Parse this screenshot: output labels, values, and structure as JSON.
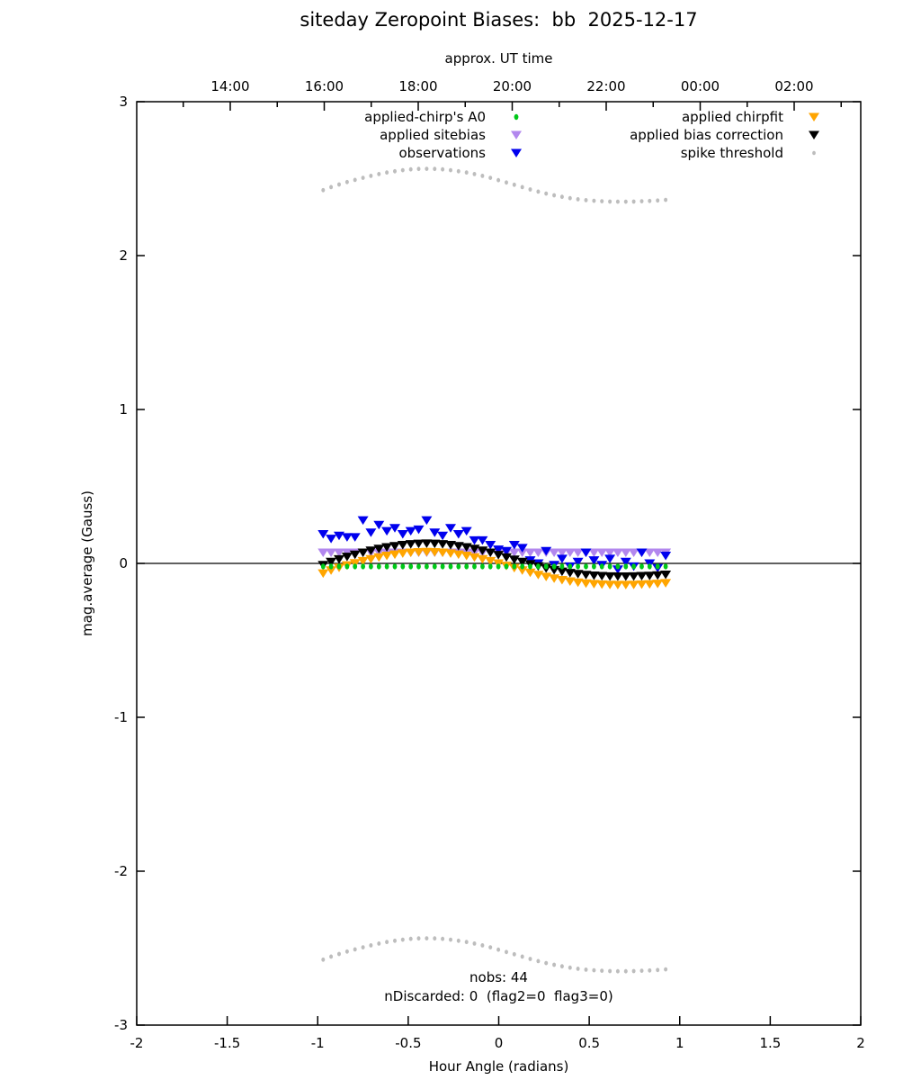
{
  "chart_data": {
    "type": "scatter",
    "title": "siteday Zeropoint Biases:  bb  2025-12-17",
    "x2label": "approx. UT time",
    "xlabel": "Hour Angle (radians)",
    "ylabel": "mag.average (Gauss)",
    "x_range": [
      -2,
      2
    ],
    "y_range": [
      -3,
      3
    ],
    "grid": false,
    "x_ticks": [
      -2,
      -1.5,
      -1,
      -0.5,
      0,
      0.5,
      1,
      1.5,
      2
    ],
    "x_tick_labels": [
      "-2",
      "-1.5",
      "-1",
      "-0.5",
      "0",
      "0.5",
      "1",
      "1.5",
      "2"
    ],
    "y_ticks": [
      -3,
      -2,
      -1,
      0,
      1,
      2,
      3
    ],
    "y_tick_labels": [
      "-3",
      "-2",
      "-1",
      "0",
      "1",
      "2",
      "3"
    ],
    "x2_tick_labels": [
      "14:00",
      "16:00",
      "18:00",
      "20:00",
      "22:00",
      "00:00",
      "02:00"
    ],
    "annotations": {
      "nobs": "nobs: 44",
      "ndiscarded": "nDiscarded: 0  (flag2=0  flag3=0)"
    },
    "x": [
      -0.97,
      -0.926,
      -0.882,
      -0.838,
      -0.794,
      -0.75,
      -0.706,
      -0.662,
      -0.618,
      -0.574,
      -0.53,
      -0.486,
      -0.442,
      -0.398,
      -0.354,
      -0.31,
      -0.266,
      -0.222,
      -0.178,
      -0.134,
      -0.09,
      -0.046,
      -0.002,
      0.042,
      0.086,
      0.13,
      0.174,
      0.218,
      0.262,
      0.306,
      0.35,
      0.394,
      0.438,
      0.482,
      0.526,
      0.57,
      0.614,
      0.658,
      0.702,
      0.746,
      0.79,
      0.834,
      0.878,
      0.922
    ],
    "series": [
      {
        "id": "spike-threshold-upper",
        "name": "spike threshold (upper)",
        "marker": "dot",
        "color": "#bdbdbd",
        "dot_size": [
          2.0,
          2.4
        ],
        "values": [
          2.425,
          2.445,
          2.462,
          2.478,
          2.492,
          2.505,
          2.518,
          2.53,
          2.54,
          2.548,
          2.555,
          2.56,
          2.563,
          2.564,
          2.563,
          2.56,
          2.555,
          2.548,
          2.54,
          2.53,
          2.518,
          2.505,
          2.49,
          2.475,
          2.46,
          2.445,
          2.43,
          2.416,
          2.403,
          2.392,
          2.382,
          2.373,
          2.366,
          2.36,
          2.356,
          2.353,
          2.351,
          2.35,
          2.35,
          2.351,
          2.353,
          2.355,
          2.358,
          2.362
        ]
      },
      {
        "id": "spike-threshold-lower",
        "name": "spike threshold (lower)",
        "marker": "dot",
        "color": "#bdbdbd",
        "dot_size": [
          2.0,
          2.4
        ],
        "values": [
          -2.575,
          -2.555,
          -2.538,
          -2.522,
          -2.508,
          -2.495,
          -2.482,
          -2.47,
          -2.46,
          -2.452,
          -2.445,
          -2.44,
          -2.437,
          -2.436,
          -2.437,
          -2.44,
          -2.445,
          -2.452,
          -2.46,
          -2.47,
          -2.482,
          -2.495,
          -2.51,
          -2.525,
          -2.54,
          -2.555,
          -2.57,
          -2.584,
          -2.597,
          -2.608,
          -2.618,
          -2.627,
          -2.634,
          -2.64,
          -2.644,
          -2.647,
          -2.649,
          -2.65,
          -2.65,
          -2.649,
          -2.647,
          -2.645,
          -2.642,
          -2.638
        ]
      },
      {
        "id": "applied-sitebias",
        "name": "applied sitebias",
        "marker": "triangle-down",
        "color": "#b287ee",
        "value": 0.07
      },
      {
        "id": "observations",
        "name": "observations",
        "marker": "triangle-down",
        "color": "#0000ee",
        "values": [
          0.19,
          0.16,
          0.18,
          0.17,
          0.17,
          0.28,
          0.2,
          0.25,
          0.21,
          0.23,
          0.19,
          0.21,
          0.22,
          0.28,
          0.2,
          0.18,
          0.23,
          0.19,
          0.21,
          0.15,
          0.15,
          0.12,
          0.09,
          0.08,
          0.12,
          0.1,
          0.02,
          0.0,
          0.08,
          -0.01,
          0.03,
          -0.02,
          0.01,
          0.07,
          0.02,
          -0.01,
          0.03,
          -0.04,
          0.01,
          -0.02,
          0.07,
          0.0,
          -0.03,
          0.05
        ]
      },
      {
        "id": "applied-chirpfit",
        "name": "applied chirpfit",
        "marker": "triangle-down",
        "color": "#ffa500",
        "values": [
          -0.065,
          -0.045,
          -0.028,
          -0.012,
          0.002,
          0.015,
          0.028,
          0.04,
          0.05,
          0.058,
          0.065,
          0.07,
          0.073,
          0.074,
          0.073,
          0.07,
          0.065,
          0.058,
          0.05,
          0.04,
          0.028,
          0.015,
          0.0,
          -0.015,
          -0.03,
          -0.045,
          -0.06,
          -0.074,
          -0.087,
          -0.098,
          -0.108,
          -0.117,
          -0.124,
          -0.13,
          -0.134,
          -0.137,
          -0.139,
          -0.14,
          -0.14,
          -0.139,
          -0.137,
          -0.135,
          -0.132,
          -0.128
        ]
      },
      {
        "id": "applied-bias-correction",
        "name": "applied bias correction",
        "marker": "triangle-down",
        "color": "#000000",
        "values": [
          -0.01,
          0.01,
          0.027,
          0.043,
          0.057,
          0.07,
          0.083,
          0.095,
          0.105,
          0.113,
          0.12,
          0.125,
          0.128,
          0.129,
          0.128,
          0.125,
          0.12,
          0.113,
          0.105,
          0.095,
          0.083,
          0.07,
          0.055,
          0.04,
          0.025,
          0.01,
          -0.005,
          -0.019,
          -0.032,
          -0.043,
          -0.053,
          -0.062,
          -0.069,
          -0.075,
          -0.079,
          -0.082,
          -0.084,
          -0.085,
          -0.085,
          -0.084,
          -0.082,
          -0.08,
          -0.077,
          -0.073
        ]
      },
      {
        "id": "applied-chirps-a0",
        "name": "applied-chirp's A0",
        "marker": "dot",
        "color": "#00c819",
        "dot_size": [
          2.4,
          3.2
        ],
        "value": -0.02
      }
    ]
  },
  "legend": {
    "columns": [
      {
        "items": [
          {
            "label": "applied-chirp's A0",
            "marker": "dot",
            "color": "#00c819",
            "dot_size": [
              2.4,
              3.2
            ]
          },
          {
            "label": "applied sitebias",
            "marker": "triangle-down",
            "color": "#b287ee"
          },
          {
            "label": "observations",
            "marker": "triangle-down",
            "color": "#0000ee"
          }
        ]
      },
      {
        "items": [
          {
            "label": "applied chirpfit",
            "marker": "triangle-down",
            "color": "#ffa500"
          },
          {
            "label": "applied bias correction",
            "marker": "triangle-down",
            "color": "#000000"
          },
          {
            "label": "spike threshold",
            "marker": "dot",
            "color": "#bdbdbd",
            "dot_size": [
              1.9,
              2.3
            ]
          }
        ]
      }
    ]
  },
  "colors": {
    "background": "#ffffff",
    "axis": "#000000",
    "observations": "#0000ee",
    "sitebias": "#b287ee",
    "chirpfit": "#ffa500",
    "bias_correction": "#000000",
    "a0": "#00c819",
    "spike_threshold": "#bdbdbd"
  }
}
